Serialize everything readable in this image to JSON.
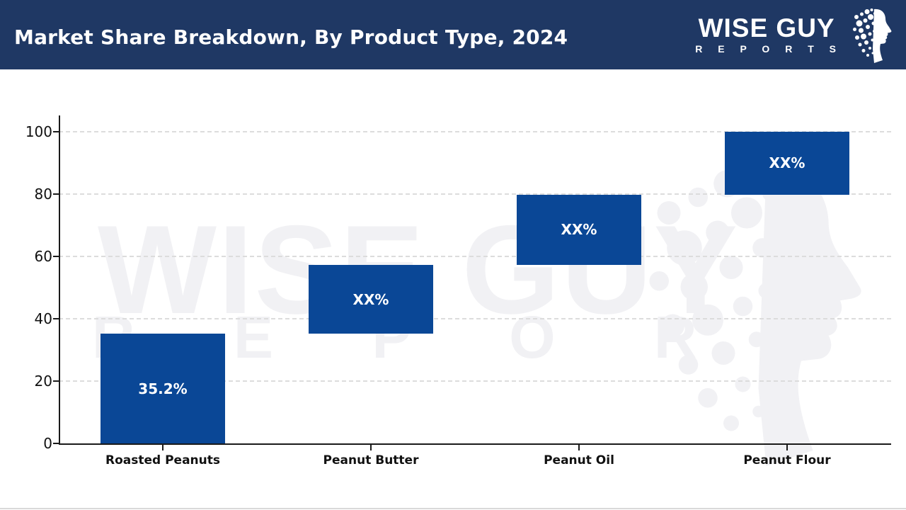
{
  "header": {
    "title": "Market Share Breakdown, By Product Type, 2024",
    "bg_color": "#1f3864",
    "logo": {
      "line1": "WISE GUY",
      "line2": "R E P O R T S"
    }
  },
  "watermark": {
    "line1": "WISE GUY",
    "line2": "R E P O R T S",
    "color": "#f1f1f4"
  },
  "chart_data": {
    "type": "bar",
    "subtype": "waterfall",
    "title": "Market Share Breakdown, By Product Type, 2024",
    "xlabel": "",
    "ylabel": "",
    "categories": [
      "Roasted Peanuts",
      "Peanut Butter",
      "Peanut Oil",
      "Peanut Flour"
    ],
    "segments": [
      {
        "category": "Roasted Peanuts",
        "start": 0,
        "end": 35.2,
        "label": "35.2%"
      },
      {
        "category": "Peanut Butter",
        "start": 35.2,
        "end": 57.3,
        "label": "XX%"
      },
      {
        "category": "Peanut Oil",
        "start": 57.3,
        "end": 79.8,
        "label": "XX%"
      },
      {
        "category": "Peanut Flour",
        "start": 79.8,
        "end": 100,
        "label": "XX%"
      }
    ],
    "yticks": [
      0,
      20,
      40,
      60,
      80,
      100
    ],
    "ylim": [
      0,
      105
    ],
    "grid": "horizontal-dashed",
    "legend": "none",
    "bar_color": "#0a4796",
    "bar_label_color": "#ffffff",
    "axis_color": "#1a1a1a",
    "grid_color": "#dcdcdc"
  }
}
